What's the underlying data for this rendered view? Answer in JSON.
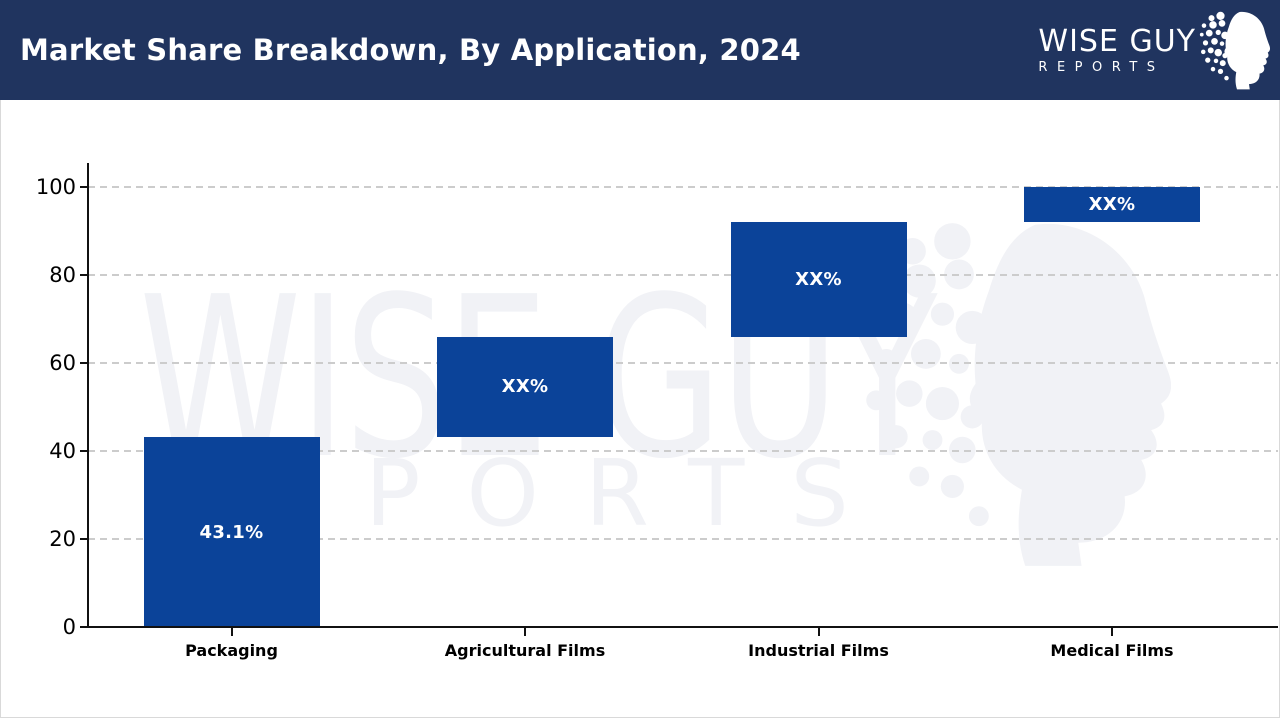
{
  "header": {
    "title": "Market Share Breakdown, By Application, 2024",
    "logo_line1": "WISE GUY",
    "logo_line2": "REPORTS"
  },
  "watermark": {
    "line1": "WISE GUY",
    "line2": "REPORTS"
  },
  "colors": {
    "header_bg": "#20345f",
    "bar": "#0b4399",
    "bar_label": "#ffffff",
    "grid": "#cccccc",
    "axis": "#111111",
    "watermark": "#f1f2f6",
    "page_border": "#d9d9d9"
  },
  "chart_data": {
    "type": "bar",
    "variant": "waterfall",
    "title": "Market Share Breakdown, By Application, 2024",
    "categories": [
      "Packaging",
      "Agricultural Films",
      "Industrial Films",
      "Medical Films"
    ],
    "segments": [
      {
        "category": "Packaging",
        "start": 0,
        "end": 43.1,
        "value": 43.1,
        "label": "43.1%"
      },
      {
        "category": "Agricultural Films",
        "start": 43.1,
        "end": 66.0,
        "value": 22.9,
        "label": "XX%"
      },
      {
        "category": "Industrial Films",
        "start": 66.0,
        "end": 92.0,
        "value": 26.0,
        "label": "XX%"
      },
      {
        "category": "Medical Films",
        "start": 92.0,
        "end": 100.0,
        "value": 8.0,
        "label": "XX%"
      }
    ],
    "xlabel": "",
    "ylabel": "",
    "ylim": [
      0,
      105
    ],
    "yticks": [
      0,
      20,
      40,
      60,
      80,
      100
    ],
    "grid": "horizontal-dashed",
    "legend": "none",
    "bar_color": "#0b4399",
    "label_color": "#ffffff"
  }
}
